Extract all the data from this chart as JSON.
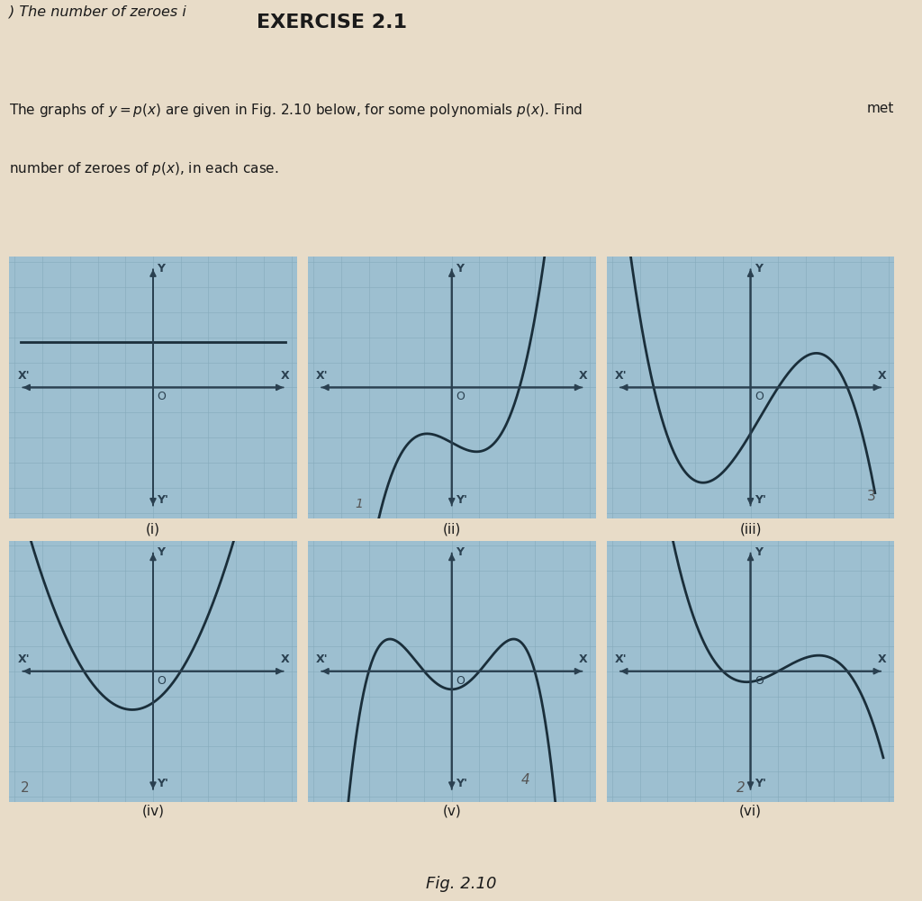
{
  "title": "EXERCISE 2.1",
  "fig_caption": "Fig. 2.10",
  "top_text": ") The number of zeroes i",
  "labels": [
    "(i)",
    "(ii)",
    "(iii)",
    "(iv)",
    "(v)",
    "(vi)"
  ],
  "grid_bg": "#9dbfd0",
  "page_bg": "#e8dcc8",
  "axis_color": "#2a4050",
  "curve_color": "#1a2e3a",
  "grid_line_color": "#85aabb",
  "note_3": "3",
  "note_2_iv": "2",
  "note_2_vi": "2",
  "note_4": "4",
  "note_1": "1"
}
